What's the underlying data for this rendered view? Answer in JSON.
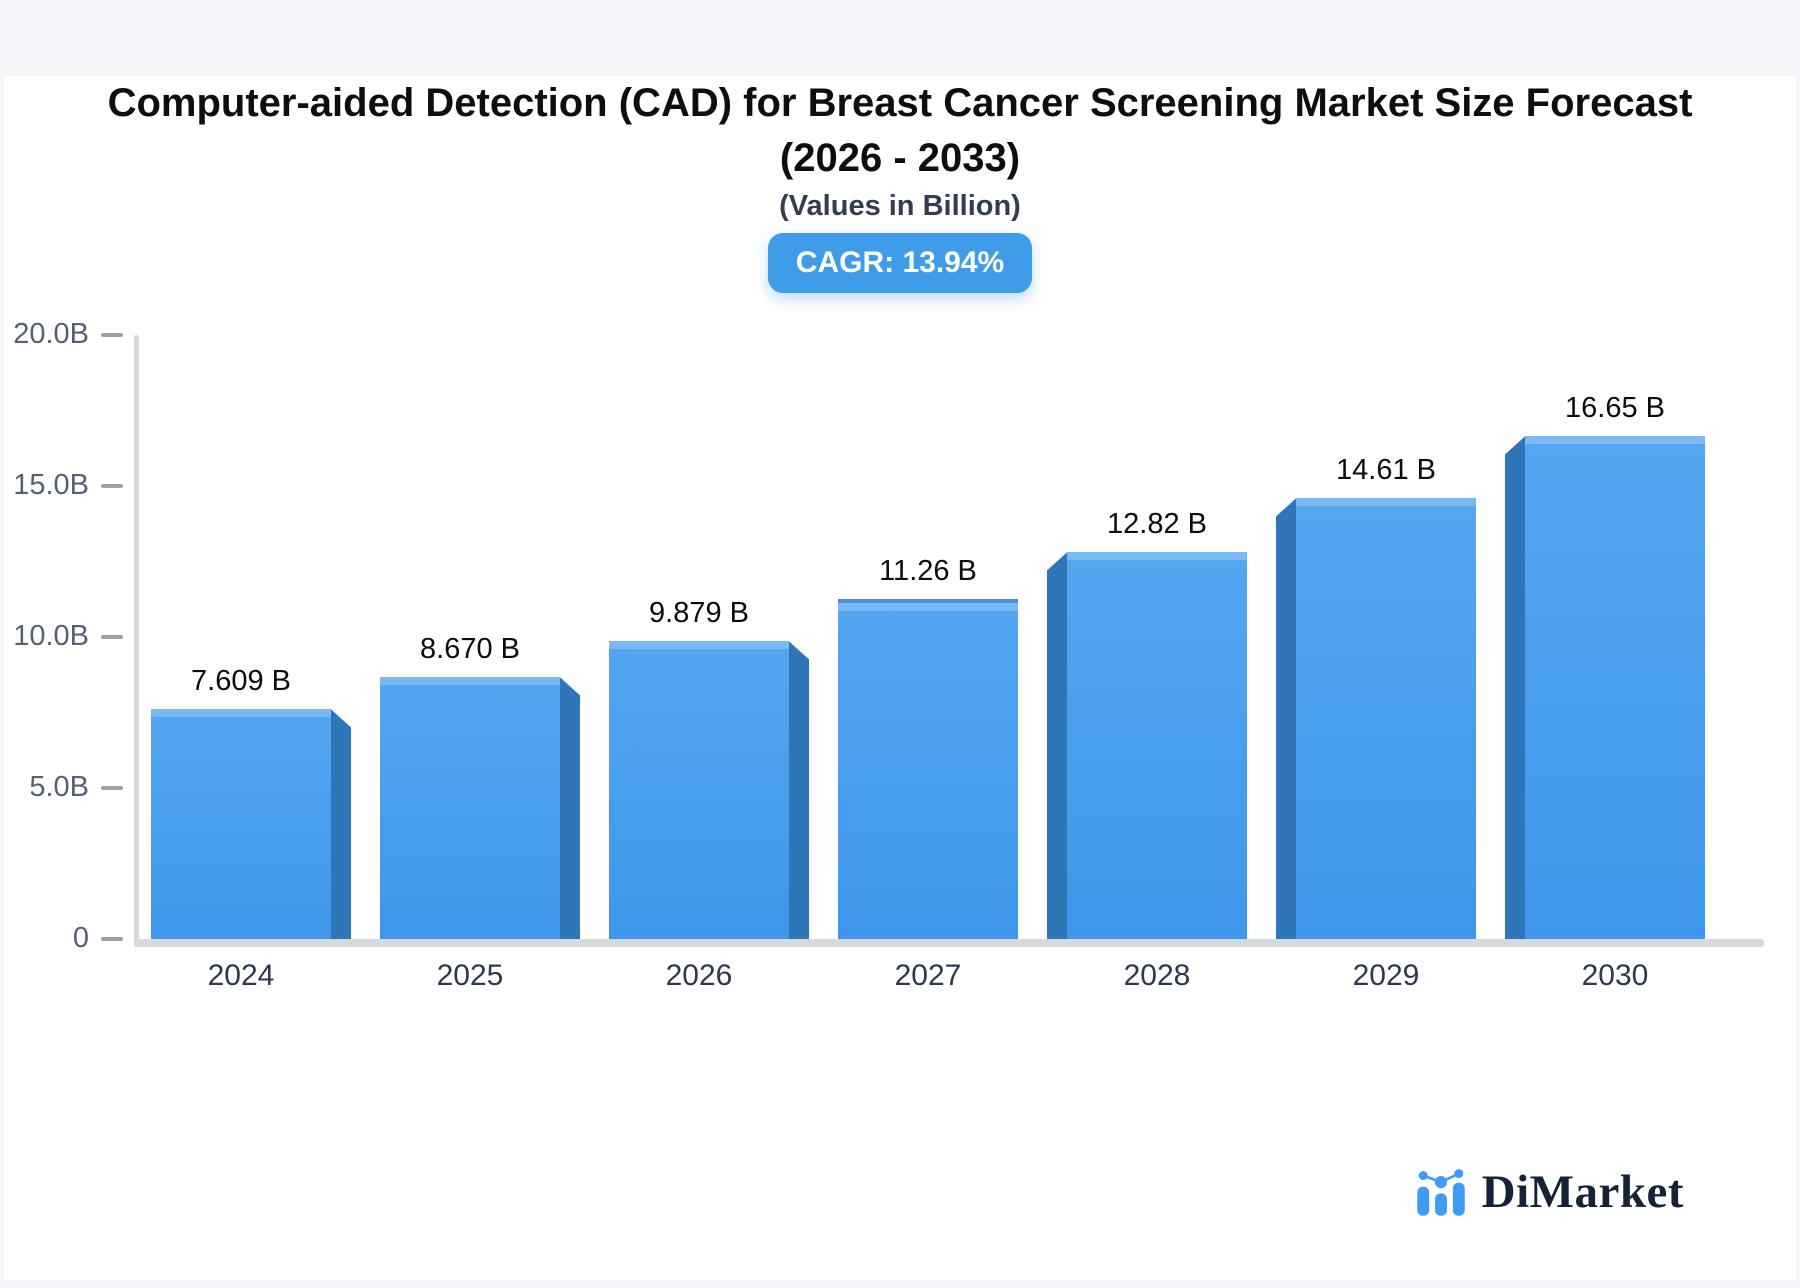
{
  "title": {
    "line1": "Computer-aided Detection (CAD) for Breast Cancer Screening Market Size Forecast",
    "line2": "(2026 - 2033)"
  },
  "subtitle": "(Values in Billion)",
  "badge": {
    "label": "CAGR: 13.94%"
  },
  "chart_data": {
    "type": "bar",
    "title": "Computer-aided Detection (CAD) for Breast Cancer Screening Market Size Forecast (2026 - 2033)",
    "subtitle": "(Values in Billion)",
    "cagr_percent": 13.94,
    "categories": [
      "2024",
      "2025",
      "2026",
      "2027",
      "2028",
      "2029",
      "2030"
    ],
    "values": [
      7.609,
      8.67,
      9.879,
      11.26,
      12.82,
      14.61,
      16.65
    ],
    "value_labels": [
      "7.609 B",
      "8.670 B",
      "9.879 B",
      "11.26 B",
      "12.82 B",
      "14.61 B",
      "16.65 B"
    ],
    "xlabel": "",
    "ylabel": "",
    "ylim": [
      0,
      20
    ],
    "yticks": [
      {
        "value": 20,
        "label": "20.0B"
      },
      {
        "value": 15,
        "label": "15.0B"
      },
      {
        "value": 10,
        "label": "10.0B"
      },
      {
        "value": 5,
        "label": "5.0B"
      },
      {
        "value": 0,
        "label": "0"
      }
    ],
    "grid": false,
    "legend": false,
    "bar_style": "3d-extruded, perspective toward center bar"
  },
  "logo": {
    "text": "DiMarket",
    "icon": "bar-chart-logo-icon"
  },
  "colors": {
    "title-text": "#0e0e0e",
    "subtitle-text": "#323d4f",
    "badge-bg": "#3f9ce9",
    "badge-text": "#ffffff",
    "bar-body-1": "#55a6f0",
    "bar-body-2": "#3e97ec",
    "bar-side": "#2e76b8",
    "bar-center-top": "#4a90d6",
    "axis": "#d6dade",
    "tick-text": "#546273",
    "year-text": "#2d3950",
    "value-text": "#0c0c0c",
    "logo-blue": "#3f9cf5",
    "logo-navy": "#152238"
  }
}
